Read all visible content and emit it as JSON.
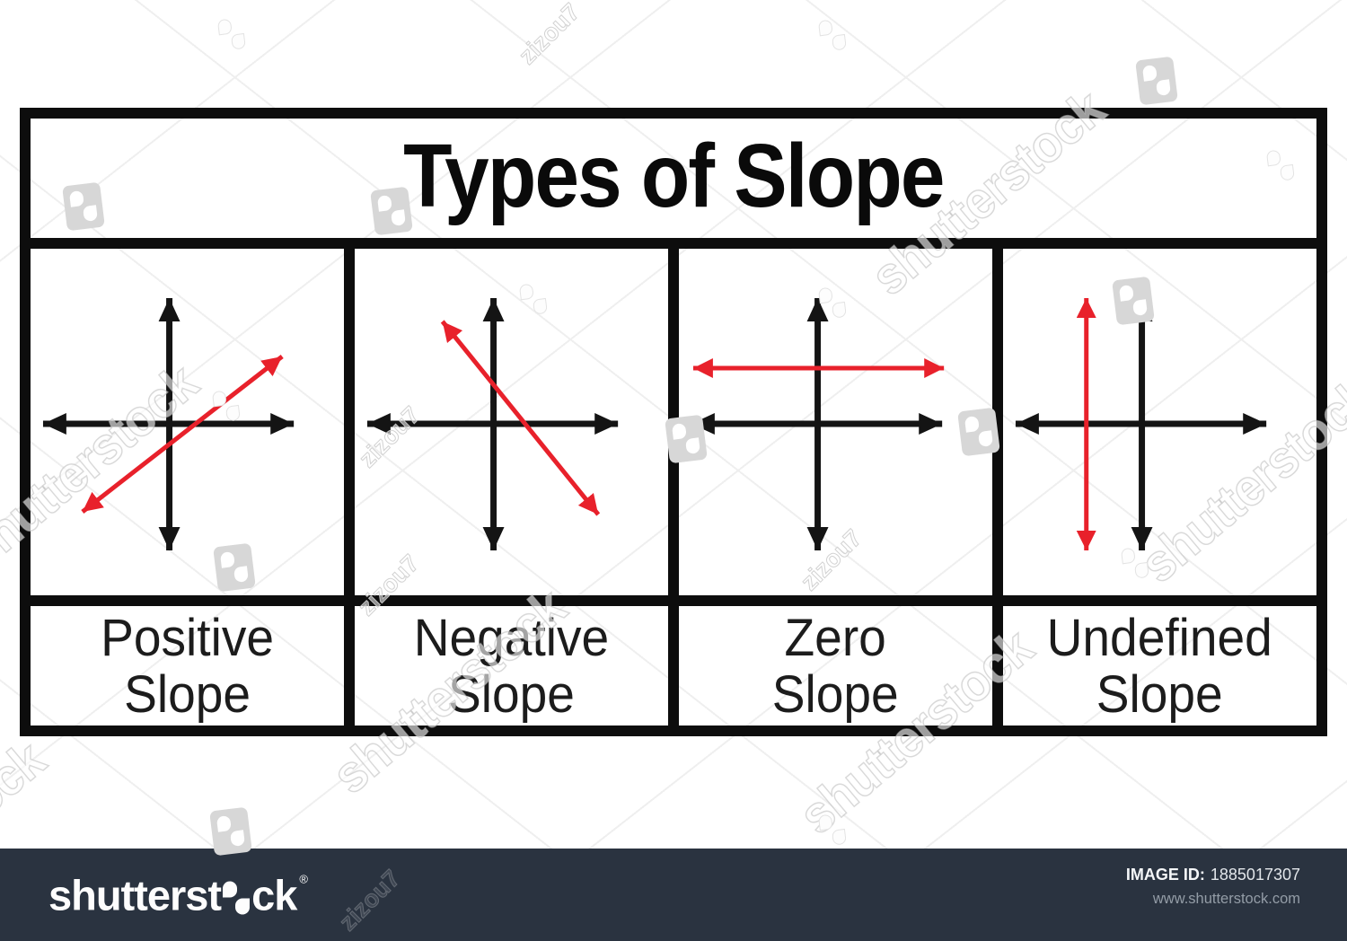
{
  "title": "Types of Slope",
  "cells": [
    {
      "slope_type": "positive",
      "label_line1": "Positive",
      "label_line2": "Slope"
    },
    {
      "slope_type": "negative",
      "label_line1": "Negative",
      "label_line2": "Slope"
    },
    {
      "slope_type": "zero",
      "label_line1": "Zero",
      "label_line2": "Slope"
    },
    {
      "slope_type": "undefined",
      "label_line1": "Undefined",
      "label_line2": "Slope"
    }
  ],
  "colors": {
    "slope_line_red": "#e8212b",
    "axis_black": "#141414",
    "table_border": "#0d0d0d",
    "footer_background": "#2a3340",
    "watermark_gray": "#ededed"
  },
  "watermark": {
    "ghost_text": "shutterstock",
    "contributor": "zizou7"
  },
  "footer": {
    "logo_part1": "shutterst",
    "logo_part2": "ck",
    "reg_mark": "®",
    "image_id_label": "IMAGE ID:",
    "image_id_value": "1885017307",
    "website": "www.shutterstock.com"
  }
}
